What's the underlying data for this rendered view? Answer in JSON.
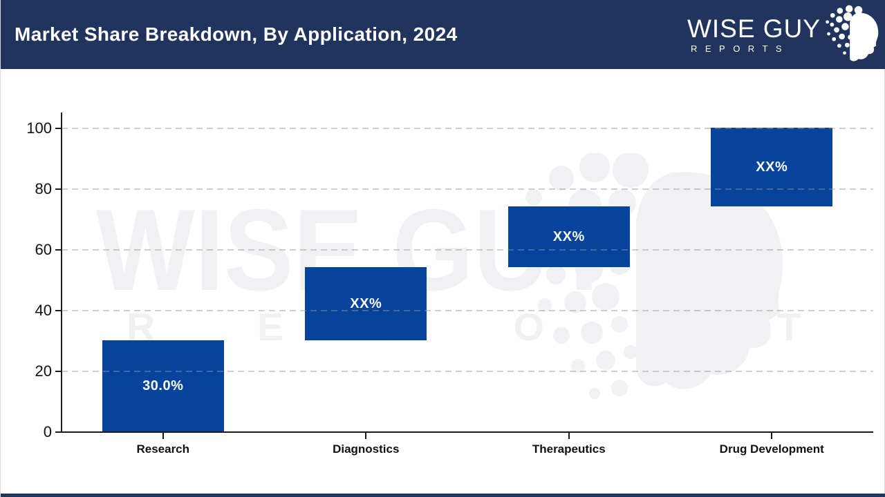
{
  "header": {
    "title": "Market Share Breakdown, By Application, 2024"
  },
  "logo": {
    "line1": "WISE GUY",
    "line2": "REPORTS",
    "icon": "wiseguy-face-icon"
  },
  "watermark": {
    "line1": "WISE GUY",
    "line2": "R E P O R T S"
  },
  "colors": {
    "header_bg": "#21345e",
    "bar": "#05439c",
    "bar_label": "#ffffff",
    "axis": "#1a1a1a",
    "grid": "#d8d8d8",
    "watermark": "#f1f1f3",
    "background": "#ffffff"
  },
  "chart_data": {
    "type": "bar",
    "subtype": "waterfall",
    "title": "Market Share Breakdown, By Application, 2024",
    "categories": [
      "Research",
      "Diagnostics",
      "Therapeutics",
      "Drug Development"
    ],
    "segments": [
      {
        "category": "Research",
        "start": 0,
        "end": 30,
        "label": "30.0%"
      },
      {
        "category": "Diagnostics",
        "start": 30,
        "end": 54,
        "label": "XX%"
      },
      {
        "category": "Therapeutics",
        "start": 54,
        "end": 74,
        "label": "XX%"
      },
      {
        "category": "Drug Development",
        "start": 74,
        "end": 100,
        "label": "XX%"
      }
    ],
    "values": [
      30,
      24,
      20,
      26
    ],
    "xlabel": "",
    "ylabel": "",
    "ylim": [
      0,
      100
    ],
    "yticks": [
      0,
      20,
      40,
      60,
      80,
      100
    ],
    "grid": "horizontal-dashed",
    "legend": "none",
    "bar_color": "#05439c",
    "bar_label_color": "#ffffff"
  }
}
